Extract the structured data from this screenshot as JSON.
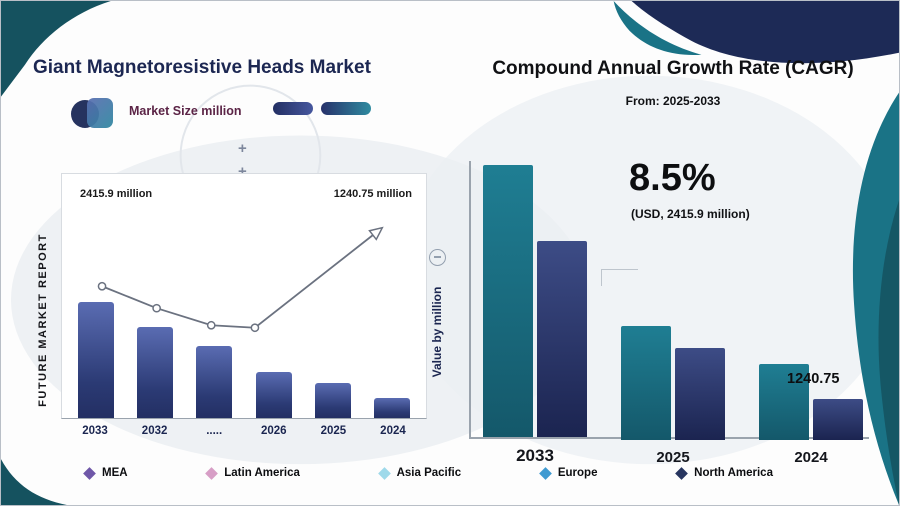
{
  "header": {
    "left_title": "Giant Magnetoresistive Heads Market",
    "market_size_label": "Market Size million",
    "right_title": "Compound Annual Growth Rate (CAGR)",
    "right_subtitle": "From: 2025-2033"
  },
  "left_panel": {
    "side_label": "FUTURE MARKET REPORT",
    "top_left_value": "2415.9 million",
    "top_right_value": "1240.75 million"
  },
  "right_panel": {
    "cagr_value": "8.5%",
    "cagr_note": "(USD, 2415.9 million)",
    "ylabel": "Value by million",
    "bar_label": "1240.75"
  },
  "chart_data": [
    {
      "type": "bar",
      "title": "Giant Magnetoresistive Heads Market - Market Size (million USD)",
      "categories": [
        "2033",
        "2032",
        ".....",
        "2026",
        "2025",
        "2024"
      ],
      "series": [
        {
          "name": "Market Size million",
          "values_pct": [
            97,
            76,
            60,
            38,
            29,
            17
          ],
          "values_million_est": [
            2415.9,
            2150,
            1900,
            1650,
            1450,
            1240.75
          ]
        }
      ],
      "annotations": [
        "2415.9 million",
        "1240.75 million"
      ],
      "trend_points_pct": [
        [
          11,
          46
        ],
        [
          26,
          55
        ],
        [
          41,
          62
        ],
        [
          53,
          63
        ]
      ],
      "trend_arrow_end_pct": [
        88,
        22
      ],
      "xlabel": "",
      "ylabel": "",
      "grid": false,
      "legend_position": "none"
    },
    {
      "type": "bar",
      "title": "Compound Annual Growth Rate (CAGR)",
      "subtitle": "From: 2025-2033",
      "categories": [
        "2033",
        "2025",
        "2024"
      ],
      "series": [
        {
          "name": "market-size-high",
          "color": "#1a7186",
          "values_pct": [
            100,
            42,
            28
          ]
        },
        {
          "name": "market-size-low",
          "color": "#2b3a72",
          "values_pct": [
            72,
            34,
            15
          ]
        }
      ],
      "cagr": "8.5%",
      "cagr_note": "(USD, 2415.9 million)",
      "labeled_value": "1240.75",
      "ylabel": "Value by million",
      "grid": false,
      "legend_position": "bottom"
    }
  ],
  "bottom_legend": {
    "items": [
      {
        "label": "MEA",
        "color": "#6f57a8"
      },
      {
        "label": "Latin America",
        "color": "#d79ec6"
      },
      {
        "label": "Asia Pacific",
        "color": "#9ed9ea"
      },
      {
        "label": "Europe",
        "color": "#3f9ad1"
      },
      {
        "label": "North America",
        "color": "#27355f"
      }
    ]
  }
}
